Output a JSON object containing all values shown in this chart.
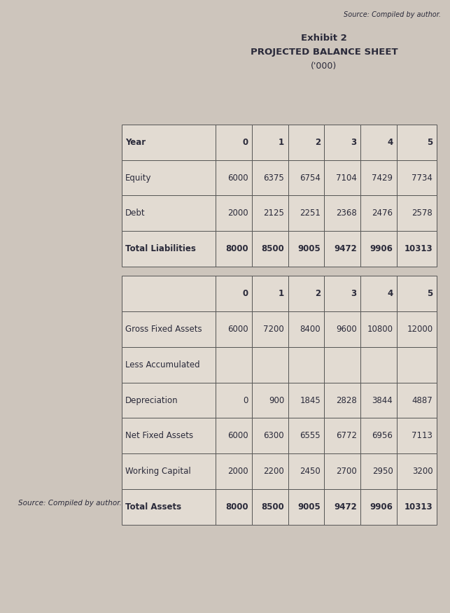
{
  "title_top": "Exhibit 2",
  "title_main": "PROJECTED BALANCE SHEET",
  "title_sub": "('000)",
  "source_top": "Source: Compiled by author.",
  "source_bottom": "Source: Compiled by author.",
  "table1": {
    "headers": [
      "Year",
      "0",
      "1",
      "2",
      "3",
      "4",
      "5"
    ],
    "rows": [
      [
        "Equity",
        "6000",
        "6375",
        "6754",
        "7104",
        "7429",
        "7734"
      ],
      [
        "Debt",
        "2000",
        "2125",
        "2251",
        "2368",
        "2476",
        "2578"
      ],
      [
        "Total Liabilities",
        "8000",
        "8500",
        "9005",
        "9472",
        "9906",
        "10313"
      ]
    ],
    "bold_rows": [
      2
    ]
  },
  "table2": {
    "rows": [
      [
        "Gross Fixed Assets",
        "6000",
        "7200",
        "8400",
        "9600",
        "10800",
        "12000"
      ],
      [
        "Less Accumulated",
        "",
        "",
        "",
        "",
        "",
        ""
      ],
      [
        "Depreciation",
        "0",
        "900",
        "1845",
        "2828",
        "3844",
        "4887"
      ],
      [
        "Net Fixed Assets",
        "6000",
        "6300",
        "6555",
        "6772",
        "6956",
        "7113"
      ],
      [
        "Working Capital",
        "2000",
        "2200",
        "2450",
        "2700",
        "2950",
        "3200"
      ],
      [
        "Total Assets",
        "8000",
        "8500",
        "9005",
        "9472",
        "9906",
        "10313"
      ]
    ],
    "bold_rows": [
      5
    ]
  },
  "bg_color": "#cdc5bc",
  "table_bg": "#e2dbd2",
  "border_color": "#555555",
  "text_color": "#2a2a3a",
  "font_size": 8.5,
  "col_widths": [
    2.6,
    1.0,
    1.0,
    1.0,
    1.0,
    1.0,
    1.1
  ]
}
